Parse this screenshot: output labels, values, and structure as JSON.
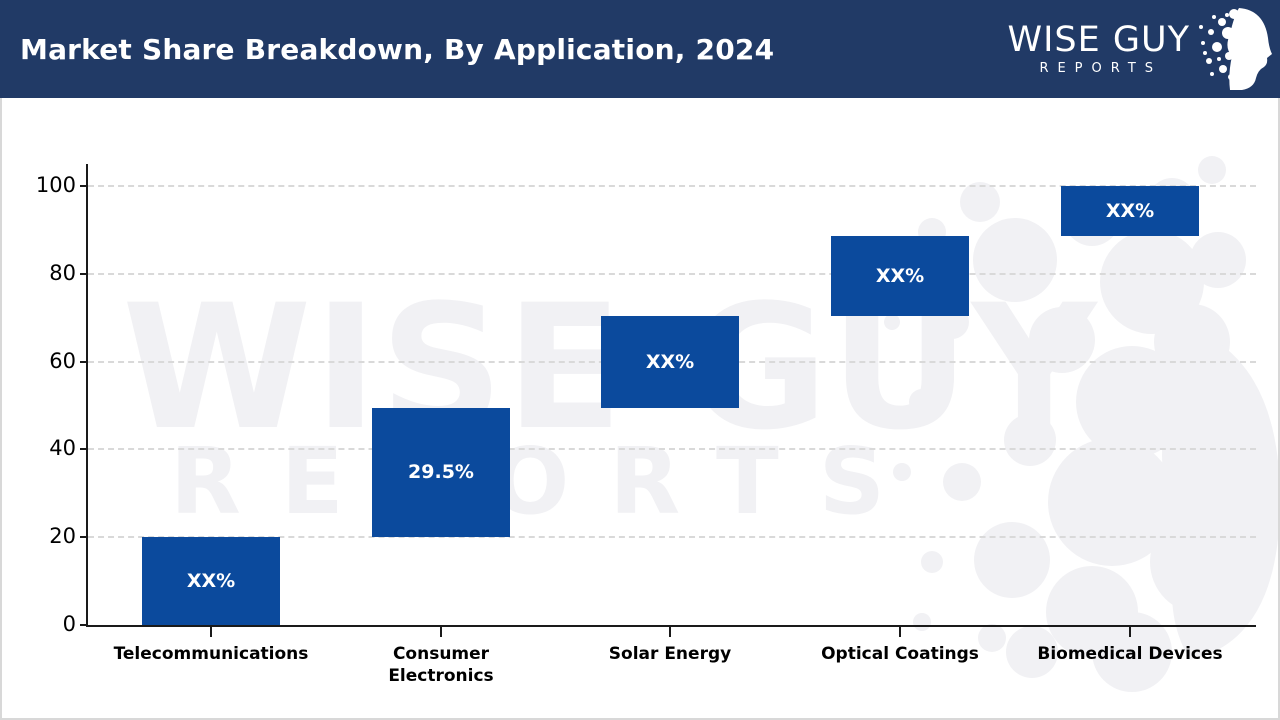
{
  "header": {
    "title": "Market Share Breakdown, By Application, 2024",
    "logo": {
      "line1": "WISE GUY",
      "line2": "REPORTS"
    }
  },
  "watermark": {
    "line1": "WISE GUY",
    "line2": "REPORTS"
  },
  "colors": {
    "header_bg": "#213a66",
    "bar": "#0b4a9d",
    "grid": "#d9d9d9",
    "axis": "#1a1a1a",
    "watermark": "#f1f1f4"
  },
  "chart_data": {
    "type": "bar",
    "subtype": "waterfall",
    "title": "Market Share Breakdown, By Application, 2024",
    "xlabel": "",
    "ylabel": "",
    "ylim": [
      0,
      105
    ],
    "yticks": [
      0,
      20,
      40,
      60,
      80,
      100
    ],
    "grid": "horizontal dashed",
    "legend": "none",
    "bar_color": "#0b4a9d",
    "categories": [
      "Telecommunications",
      "Consumer\nElectronics",
      "Solar Energy",
      "Optical Coatings",
      "Biomedical Devices"
    ],
    "bars": [
      {
        "category": "Telecommunications",
        "start": 0,
        "end": 20,
        "value": 20,
        "label": "XX%"
      },
      {
        "category": "Consumer Electronics",
        "start": 20,
        "end": 49.5,
        "value": 29.5,
        "label": "29.5%"
      },
      {
        "category": "Solar Energy",
        "start": 49.5,
        "end": 70.5,
        "value": 21,
        "label": "XX%"
      },
      {
        "category": "Optical Coatings",
        "start": 70.5,
        "end": 88.5,
        "value": 18,
        "label": "XX%"
      },
      {
        "category": "Biomedical Devices",
        "start": 88.5,
        "end": 100,
        "value": 11.5,
        "label": "XX%"
      }
    ]
  }
}
